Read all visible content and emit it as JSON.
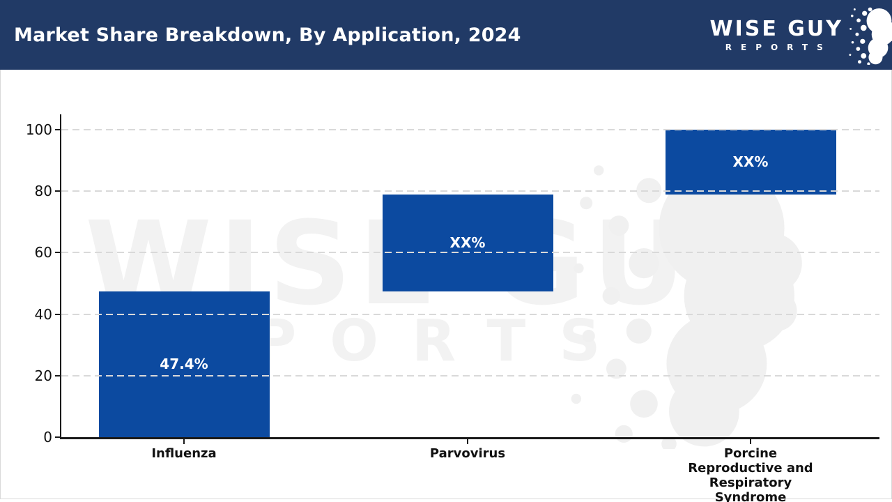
{
  "header": {
    "title": "Market Share Breakdown, By Application, 2024",
    "brand": {
      "name_line": "WISE GUY",
      "sub_line": "REPORTS"
    }
  },
  "watermark": {
    "line1": "WISE GUY",
    "line2": "REPORTS",
    "face_icon": "dotted-face-profile"
  },
  "chart_data": {
    "type": "bar",
    "variant": "waterfall-stacked-percentage",
    "title": "Market Share Breakdown, By Application, 2024",
    "categories": [
      "Influenza",
      "Parvovirus",
      "Porcine Reproductive and Respiratory Syndrome"
    ],
    "category_display_lines": [
      [
        "Influenza"
      ],
      [
        "Parvovirus"
      ],
      [
        "Porcine",
        "Reproductive and",
        "Respiratory",
        "Syndrome"
      ]
    ],
    "segments": [
      {
        "category": "Influenza",
        "start": 0,
        "end": 47.4,
        "label": "47.4%"
      },
      {
        "category": "Parvovirus",
        "start": 47.4,
        "end": 79,
        "label": "XX%"
      },
      {
        "category": "Porcine Reproductive and Respiratory Syndrome",
        "start": 79,
        "end": 100,
        "label": "XX%"
      }
    ],
    "xlabel": "",
    "ylabel": "",
    "ylim": [
      0,
      105
    ],
    "yticks": [
      0,
      20,
      40,
      60,
      80,
      100
    ],
    "grid": {
      "horizontal": true,
      "style": "dashed",
      "above_bars": true
    },
    "legend": "none",
    "bar_color": "#0c4aa0",
    "bar_label_color": "#ffffff"
  },
  "colors": {
    "header_bg": "#213a66",
    "bar": "#0c4aa0",
    "axis": "#1a1a1a",
    "gridline": "#d9d9d9",
    "watermark": "#f2f2f2",
    "frame_border": "#d9d9d9",
    "page_bg": "#ffffff",
    "text": "#111111",
    "title_text": "#ffffff"
  }
}
